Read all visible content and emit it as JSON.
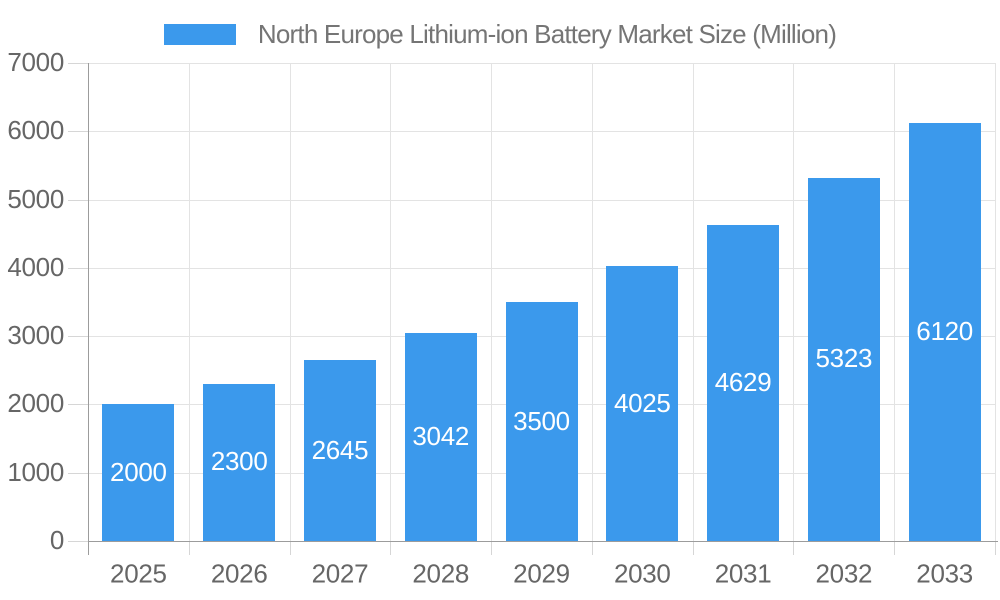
{
  "chart_data": {
    "type": "bar",
    "title": "North Europe Lithium-ion Battery Market Size (Million)",
    "categories": [
      "2025",
      "2026",
      "2027",
      "2028",
      "2029",
      "2030",
      "2031",
      "2032",
      "2033"
    ],
    "series": [
      {
        "name": "North Europe Lithium-ion Battery Market Size (Million)",
        "values": [
          2000,
          2300,
          2645,
          3042,
          3500,
          4025,
          4629,
          5323,
          6120
        ]
      }
    ],
    "xlabel": "",
    "ylabel": "",
    "ylim": [
      0,
      7000
    ],
    "y_ticks": [
      0,
      1000,
      2000,
      3000,
      4000,
      5000,
      6000,
      7000
    ],
    "grid": true,
    "legend_position": "top",
    "value_labels": "inside-middle"
  },
  "colors": {
    "bar": "#3B99EC",
    "bar_value_text": "#ffffff",
    "legend_swatch": "#3B99EC",
    "title_text": "#757575",
    "axis_label_text": "#666666",
    "gridline": "#e3e3e3",
    "tick": "#d6d6d6",
    "axis_line": "#9c9c9c"
  }
}
